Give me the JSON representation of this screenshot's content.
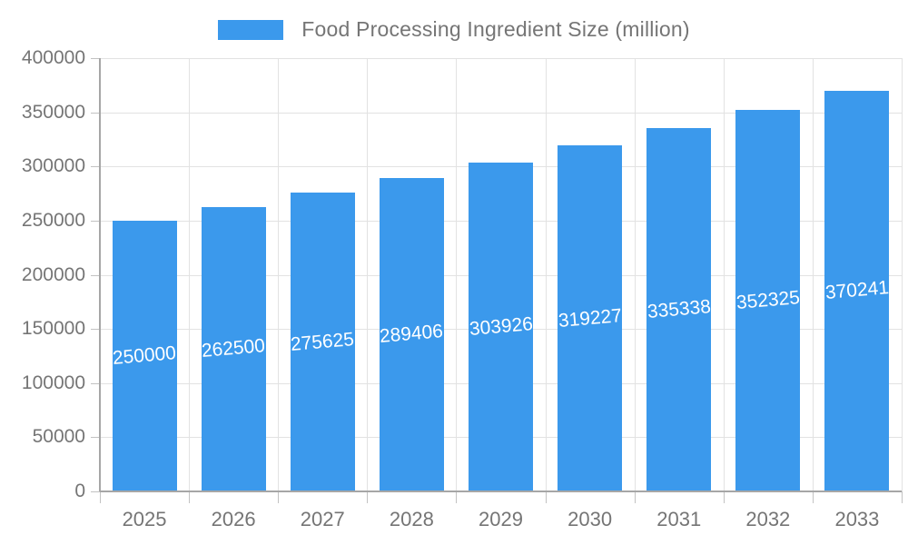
{
  "legend": {
    "items": [
      {
        "label": "Food Processing Ingredient Size (million)",
        "color": "#3B99EC"
      }
    ]
  },
  "chart_data": {
    "type": "bar",
    "title": "",
    "series_name": "Food Processing Ingredient Size (million)",
    "categories": [
      "2025",
      "2026",
      "2027",
      "2028",
      "2029",
      "2030",
      "2031",
      "2032",
      "2033"
    ],
    "values": [
      250000,
      262500,
      275625,
      289406,
      303926,
      319227,
      335338,
      352325,
      370241
    ],
    "bar_labels": [
      "250000",
      "262500",
      "275625",
      "289406",
      "303926",
      "319227",
      "335338",
      "352325",
      "370241"
    ],
    "xlabel": "",
    "ylabel": "",
    "ylim": [
      0,
      400000
    ],
    "yticks": [
      0,
      50000,
      100000,
      150000,
      200000,
      250000,
      300000,
      350000,
      400000
    ],
    "ytick_labels": [
      "0",
      "50000",
      "100000",
      "150000",
      "200000",
      "250000",
      "300000",
      "350000",
      "400000"
    ],
    "grid": true,
    "legend_position": "top",
    "bar_label_position": "inside-middle",
    "bar_label_rotation_deg": -5,
    "colors": {
      "bar": "#3B99EC",
      "bar_label": "#ffffff",
      "axis_text": "#757575",
      "axis_line": "#a6a6a6",
      "grid_line": "#e2e2e2",
      "tick": "#c2c2c2",
      "background": "#ffffff"
    }
  }
}
